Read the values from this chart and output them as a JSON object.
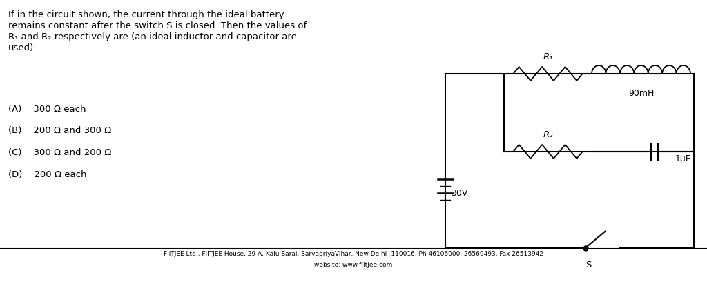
{
  "bg_color": "#ffffff",
  "question_text_lines": [
    "If in the circuit shown, the current through the ideal battery",
    "remains constant after the switch S is closed. Then the values of",
    "R₁ and R₂ respectively are (an ideal inductor and capacitor are",
    "used)"
  ],
  "options": [
    "(A)    300 Ω each",
    "(B)    200 Ω and 300 Ω",
    "(C)    300 Ω and 200 Ω",
    "(D)    200 Ω each"
  ],
  "footer_line1": "FIITJEE Ltd., FIITJEE House, 29-A, Kalu Sarai, SarvapriyaVihar, New Delhi -110016, Ph 46106000, 26569493, Fax 26513942",
  "footer_line2": "website: www.fiitjee.com",
  "circuit": {
    "battery_voltage": "30V",
    "inductor_value": "90mH",
    "capacitor_value": "1μF",
    "r1_label": "R₁",
    "r2_label": "R₂",
    "switch_label": "S"
  },
  "text_color": "#000000",
  "line_color": "#000000"
}
